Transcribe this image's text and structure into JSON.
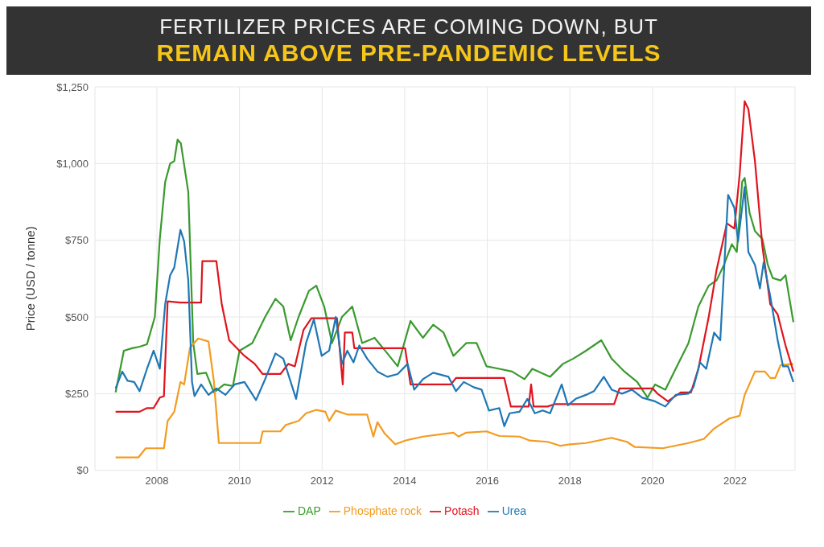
{
  "chart_data": {
    "type": "line",
    "title": "FERTILIZER PRICES ARE COMING DOWN, BUT",
    "subtitle": "REMAIN ABOVE PRE-PANDEMIC LEVELS",
    "ylabel": "Price (USD / tonne)",
    "xlim": [
      2006.5,
      2023.45
    ],
    "xticks": [
      2008,
      2010,
      2012,
      2014,
      2016,
      2018,
      2020,
      2022
    ],
    "ylim": [
      0,
      1250
    ],
    "yticks": [
      {
        "value": 0,
        "label": "$0"
      },
      {
        "value": 250,
        "label": "$250"
      },
      {
        "value": 500,
        "label": "$500"
      },
      {
        "value": 750,
        "label": "$750"
      },
      {
        "value": 1000,
        "label": "$1,000"
      },
      {
        "value": 1250,
        "label": "$1,250"
      }
    ],
    "grid": true,
    "legend": "bottom",
    "marker": "none",
    "line_style": "solid",
    "series": [
      {
        "name": "DAP",
        "color": "#3a9a2e",
        "x": [
          2007.0,
          2007.2,
          2007.4,
          2007.58,
          2007.76,
          2007.95,
          2008.07,
          2008.2,
          2008.32,
          2008.42,
          2008.5,
          2008.58,
          2008.76,
          2008.88,
          2008.98,
          2009.19,
          2009.38,
          2009.63,
          2009.84,
          2010.0,
          2010.31,
          2010.62,
          2010.87,
          2011.06,
          2011.24,
          2011.43,
          2011.68,
          2011.86,
          2012.05,
          2012.24,
          2012.48,
          2012.73,
          2012.97,
          2013.27,
          2013.58,
          2013.83,
          2014.14,
          2014.44,
          2014.69,
          2014.94,
          2015.18,
          2015.49,
          2015.74,
          2015.98,
          2016.29,
          2016.6,
          2016.9,
          2017.09,
          2017.52,
          2017.83,
          2018.08,
          2018.39,
          2018.76,
          2019.01,
          2019.32,
          2019.63,
          2019.88,
          2020.06,
          2020.31,
          2020.56,
          2020.87,
          2021.11,
          2021.36,
          2021.55,
          2021.73,
          2021.92,
          2022.04,
          2022.17,
          2022.23,
          2022.35,
          2022.48,
          2022.66,
          2022.79,
          2022.91,
          2023.1,
          2023.22,
          2023.41
        ],
        "values": [
          254,
          390,
          398,
          403,
          411,
          500,
          754,
          940,
          1000,
          1008,
          1078,
          1066,
          907,
          415,
          314,
          318,
          254,
          280,
          275,
          390,
          415,
          500,
          559,
          534,
          424,
          500,
          585,
          602,
          534,
          415,
          500,
          534,
          415,
          432,
          381,
          339,
          487,
          432,
          475,
          449,
          373,
          415,
          415,
          339,
          331,
          322,
          297,
          331,
          305,
          347,
          364,
          390,
          424,
          364,
          322,
          288,
          237,
          280,
          263,
          331,
          415,
          534,
          602,
          619,
          670,
          737,
          712,
          941,
          953,
          839,
          780,
          754,
          670,
          627,
          619,
          636,
          483
        ]
      },
      {
        "name": "Phosphate rock",
        "color": "#f39b1f",
        "x": [
          2007.0,
          2007.55,
          2007.73,
          2008.17,
          2008.26,
          2008.42,
          2008.57,
          2008.66,
          2008.8,
          2009.0,
          2009.25,
          2009.38,
          2009.5,
          2010.5,
          2010.56,
          2010.99,
          2011.12,
          2011.43,
          2011.61,
          2011.86,
          2012.08,
          2012.17,
          2012.33,
          2012.61,
          2013.09,
          2013.24,
          2013.34,
          2013.52,
          2013.77,
          2014.01,
          2014.44,
          2015.18,
          2015.3,
          2015.49,
          2015.98,
          2016.29,
          2016.78,
          2017.03,
          2017.46,
          2017.77,
          2018.01,
          2018.39,
          2019.01,
          2019.38,
          2019.57,
          2020.25,
          2020.87,
          2021.24,
          2021.49,
          2021.86,
          2022.11,
          2022.23,
          2022.48,
          2022.72,
          2022.85,
          2022.97,
          2023.1,
          2023.41
        ],
        "values": [
          42,
          42,
          72,
          72,
          161,
          191,
          288,
          280,
          400,
          430,
          420,
          290,
          89,
          89,
          127,
          127,
          148,
          161,
          186,
          197,
          191,
          161,
          195,
          182,
          182,
          110,
          157,
          119,
          85,
          97,
          110,
          123,
          110,
          123,
          127,
          112,
          110,
          97,
          93,
          80,
          85,
          89,
          106,
          93,
          76,
          72,
          89,
          102,
          136,
          169,
          178,
          246,
          322,
          322,
          301,
          301,
          343,
          347
        ]
      },
      {
        "name": "Potash",
        "color": "#e0141e",
        "x": [
          2007.0,
          2007.58,
          2007.76,
          2007.92,
          2008.07,
          2008.17,
          2008.26,
          2008.57,
          2009.07,
          2009.1,
          2009.44,
          2009.57,
          2009.75,
          2010.12,
          2010.37,
          2010.56,
          2010.99,
          2011.18,
          2011.34,
          2011.55,
          2011.74,
          2012.36,
          2012.5,
          2012.55,
          2012.73,
          2012.78,
          2014.01,
          2014.14,
          2015.12,
          2015.24,
          2016.41,
          2016.57,
          2017.0,
          2017.06,
          2017.12,
          2017.46,
          2017.64,
          2019.07,
          2019.2,
          2020.0,
          2020.12,
          2020.37,
          2020.68,
          2020.93,
          2021.11,
          2021.36,
          2021.55,
          2021.8,
          2021.98,
          2022.11,
          2022.23,
          2022.32,
          2022.48,
          2022.66,
          2022.85,
          2023.03,
          2023.22,
          2023.41
        ],
        "values": [
          191,
          191,
          203,
          203,
          237,
          242,
          551,
          547,
          547,
          682,
          682,
          542,
          424,
          373,
          347,
          314,
          314,
          347,
          339,
          458,
          496,
          496,
          280,
          449,
          449,
          398,
          398,
          280,
          280,
          301,
          301,
          208,
          208,
          280,
          208,
          208,
          216,
          216,
          267,
          267,
          250,
          225,
          254,
          254,
          331,
          500,
          653,
          805,
          788,
          966,
          1203,
          1178,
          1008,
          729,
          542,
          508,
          407,
          322
        ]
      },
      {
        "name": "Urea",
        "color": "#1f77b4",
        "x": [
          2007.0,
          2007.16,
          2007.29,
          2007.45,
          2007.58,
          2007.76,
          2007.92,
          2008.07,
          2008.2,
          2008.32,
          2008.42,
          2008.57,
          2008.66,
          2008.76,
          2008.85,
          2008.91,
          2009.07,
          2009.25,
          2009.44,
          2009.66,
          2009.88,
          2010.12,
          2010.4,
          2010.62,
          2010.87,
          2011.06,
          2011.37,
          2011.61,
          2011.8,
          2011.99,
          2012.17,
          2012.33,
          2012.48,
          2012.61,
          2012.76,
          2012.9,
          2013.09,
          2013.34,
          2013.58,
          2013.83,
          2014.07,
          2014.23,
          2014.44,
          2014.69,
          2015.06,
          2015.24,
          2015.43,
          2015.67,
          2015.86,
          2016.04,
          2016.29,
          2016.41,
          2016.54,
          2016.78,
          2016.97,
          2017.15,
          2017.34,
          2017.52,
          2017.8,
          2017.95,
          2018.14,
          2018.39,
          2018.58,
          2018.82,
          2019.01,
          2019.26,
          2019.5,
          2019.75,
          2020.06,
          2020.31,
          2020.56,
          2020.87,
          2020.99,
          2021.15,
          2021.3,
          2021.49,
          2021.64,
          2021.83,
          2021.98,
          2022.07,
          2022.23,
          2022.32,
          2022.48,
          2022.6,
          2022.69,
          2022.85,
          2023.03,
          2023.16,
          2023.28,
          2023.41
        ],
        "values": [
          267,
          322,
          292,
          288,
          258,
          331,
          390,
          331,
          542,
          636,
          661,
          784,
          746,
          619,
          288,
          242,
          280,
          246,
          267,
          246,
          280,
          288,
          229,
          297,
          381,
          364,
          233,
          415,
          492,
          373,
          390,
          500,
          347,
          390,
          352,
          407,
          364,
          322,
          305,
          314,
          347,
          263,
          297,
          318,
          305,
          258,
          288,
          271,
          263,
          195,
          203,
          144,
          186,
          191,
          233,
          186,
          195,
          186,
          280,
          212,
          233,
          246,
          258,
          305,
          263,
          250,
          263,
          237,
          225,
          208,
          246,
          250,
          271,
          352,
          331,
          449,
          424,
          898,
          856,
          746,
          924,
          712,
          670,
          593,
          678,
          568,
          424,
          339,
          339,
          288
        ]
      }
    ]
  }
}
